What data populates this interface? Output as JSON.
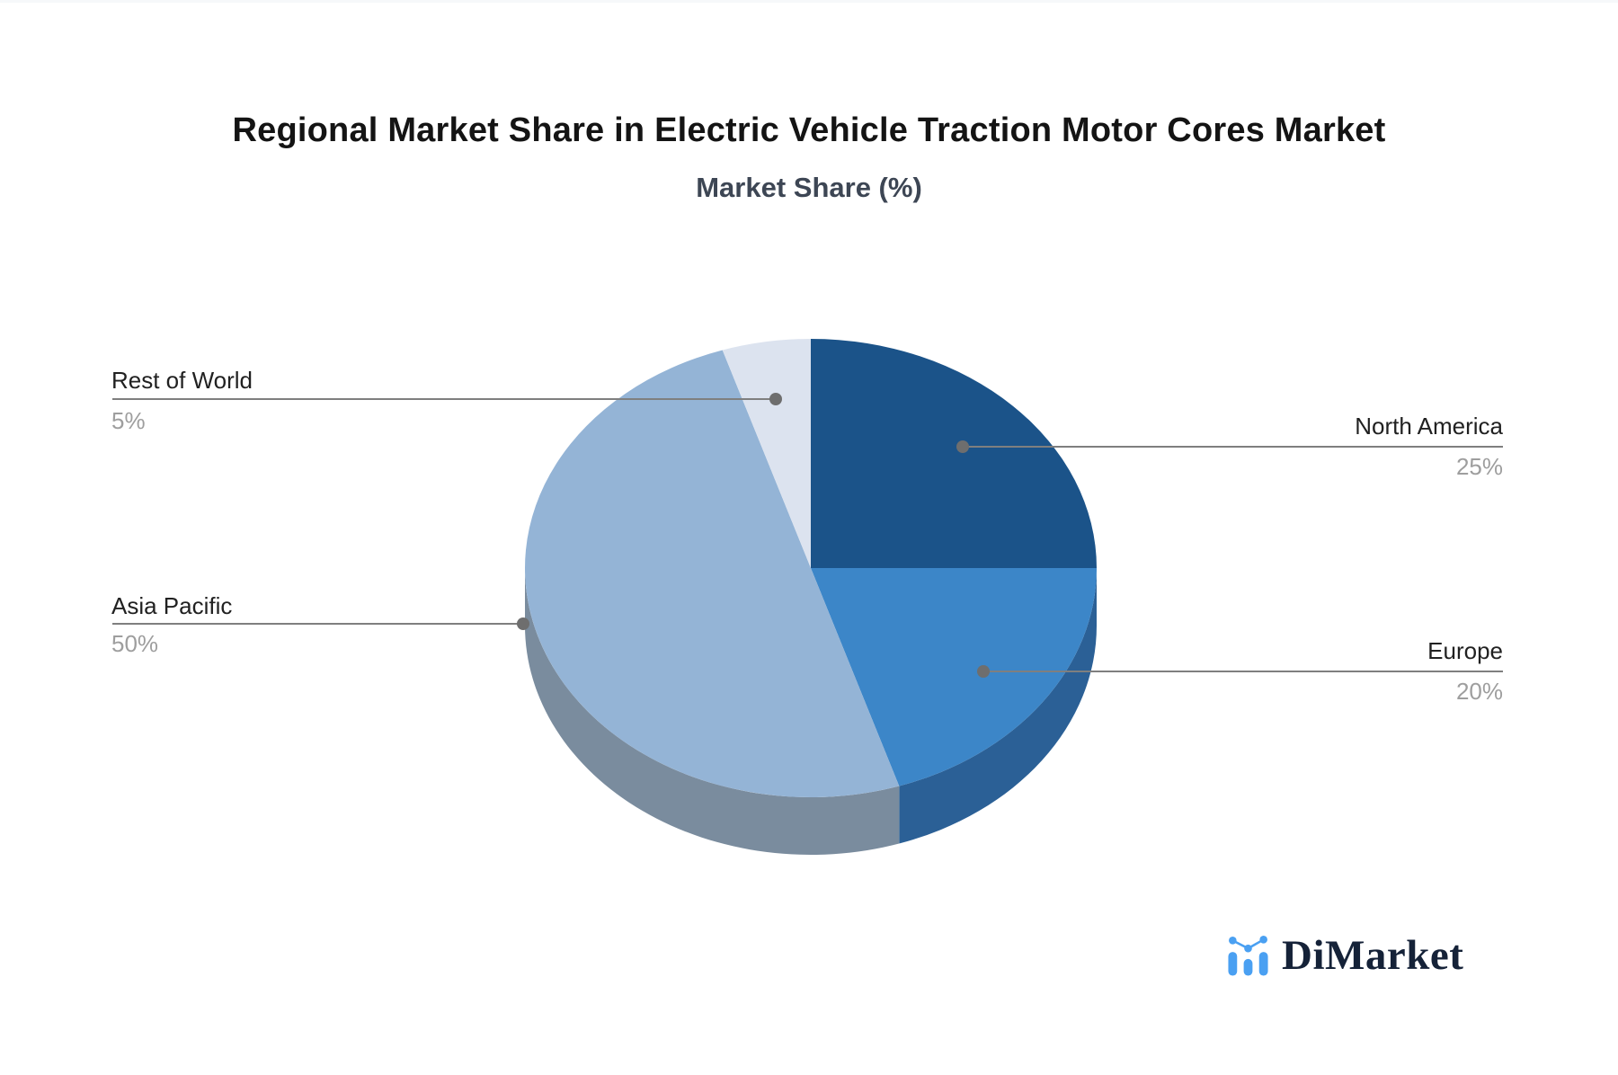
{
  "page": {
    "title": "Regional Market Share in Electric Vehicle Traction Motor Cores Market",
    "subtitle": "Market Share (%)"
  },
  "chart_data": {
    "type": "pie",
    "style": "3d",
    "title": "Regional Market Share in Electric Vehicle Traction Motor Cores Market",
    "subtitle": "Market Share (%)",
    "unit": "%",
    "start_angle_deg": 0,
    "direction": "clockwise",
    "labels_position": "callouts",
    "legend": "none",
    "segments": [
      {
        "label": "North America",
        "value": 25,
        "display_value": "25%",
        "color": "#1B5389",
        "side_color": "#164573",
        "label_side": "right"
      },
      {
        "label": "Europe",
        "value": 20,
        "display_value": "20%",
        "color": "#3C86C8",
        "side_color": "#2B6096",
        "label_side": "right"
      },
      {
        "label": "Asia Pacific",
        "value": 50,
        "display_value": "50%",
        "color": "#94B4D6",
        "side_color": "#7A8C9E",
        "label_side": "left"
      },
      {
        "label": "Rest of World",
        "value": 5,
        "display_value": "5%",
        "color": "#DCE3EF",
        "side_color": "#C2CBD9",
        "label_side": "left"
      }
    ]
  },
  "branding": {
    "logo_text": "DiMarket",
    "logo_icon": "bar-line-chart-icon"
  },
  "colors": {
    "background": "#FFFFFF",
    "title_text": "#141414",
    "subtitle_text": "#3D4654",
    "label_text": "#212121",
    "value_text": "#9E9E9E",
    "leader_line": "#7F7F7F",
    "leader_dot": "#6E6E6E",
    "logo_text": "#152238",
    "logo_icon_blue": "#4AA0F2"
  }
}
